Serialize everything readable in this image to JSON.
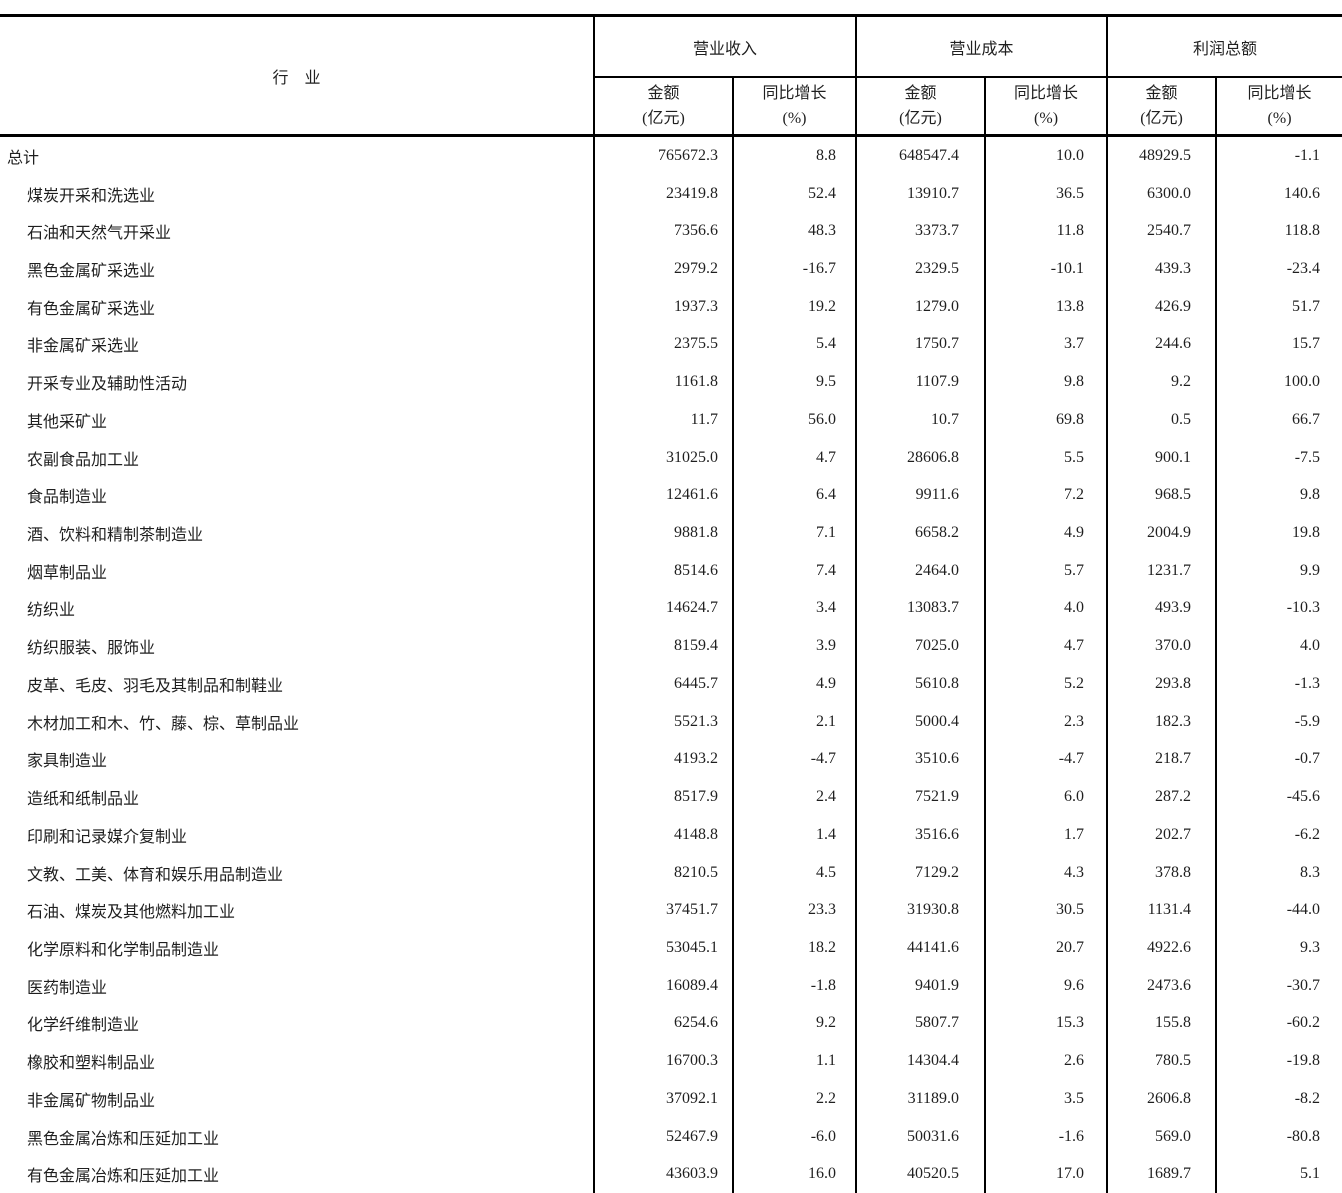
{
  "table": {
    "industry_header": "行　业",
    "groups": [
      {
        "label": "营业收入"
      },
      {
        "label": "营业成本"
      },
      {
        "label": "利润总额"
      }
    ],
    "sub_headers": {
      "amount_line1": "金额",
      "amount_line2": "(亿元)",
      "growth_line1": "同比增长",
      "growth_line2": "(%)"
    },
    "rows": [
      {
        "industry": "总计",
        "indent": false,
        "values": [
          "765672.3",
          "8.8",
          "648547.4",
          "10.0",
          "48929.5",
          "-1.1"
        ]
      },
      {
        "industry": "煤炭开采和洗选业",
        "indent": true,
        "values": [
          "23419.8",
          "52.4",
          "13910.7",
          "36.5",
          "6300.0",
          "140.6"
        ]
      },
      {
        "industry": "石油和天然气开采业",
        "indent": true,
        "values": [
          "7356.6",
          "48.3",
          "3373.7",
          "11.8",
          "2540.7",
          "118.8"
        ]
      },
      {
        "industry": "黑色金属矿采选业",
        "indent": true,
        "values": [
          "2979.2",
          "-16.7",
          "2329.5",
          "-10.1",
          "439.3",
          "-23.4"
        ]
      },
      {
        "industry": "有色金属矿采选业",
        "indent": true,
        "values": [
          "1937.3",
          "19.2",
          "1279.0",
          "13.8",
          "426.9",
          "51.7"
        ]
      },
      {
        "industry": "非金属矿采选业",
        "indent": true,
        "values": [
          "2375.5",
          "5.4",
          "1750.7",
          "3.7",
          "244.6",
          "15.7"
        ]
      },
      {
        "industry": "开采专业及辅助性活动",
        "indent": true,
        "values": [
          "1161.8",
          "9.5",
          "1107.9",
          "9.8",
          "9.2",
          "100.0"
        ]
      },
      {
        "industry": "其他采矿业",
        "indent": true,
        "values": [
          "11.7",
          "56.0",
          "10.7",
          "69.8",
          "0.5",
          "66.7"
        ]
      },
      {
        "industry": "农副食品加工业",
        "indent": true,
        "values": [
          "31025.0",
          "4.7",
          "28606.8",
          "5.5",
          "900.1",
          "-7.5"
        ]
      },
      {
        "industry": "食品制造业",
        "indent": true,
        "values": [
          "12461.6",
          "6.4",
          "9911.6",
          "7.2",
          "968.5",
          "9.8"
        ]
      },
      {
        "industry": "酒、饮料和精制茶制造业",
        "indent": true,
        "values": [
          "9881.8",
          "7.1",
          "6658.2",
          "4.9",
          "2004.9",
          "19.8"
        ]
      },
      {
        "industry": "烟草制品业",
        "indent": true,
        "values": [
          "8514.6",
          "7.4",
          "2464.0",
          "5.7",
          "1231.7",
          "9.9"
        ]
      },
      {
        "industry": "纺织业",
        "indent": true,
        "values": [
          "14624.7",
          "3.4",
          "13083.7",
          "4.0",
          "493.9",
          "-10.3"
        ]
      },
      {
        "industry": "纺织服装、服饰业",
        "indent": true,
        "values": [
          "8159.4",
          "3.9",
          "7025.0",
          "4.7",
          "370.0",
          "4.0"
        ]
      },
      {
        "industry": "皮革、毛皮、羽毛及其制品和制鞋业",
        "indent": true,
        "values": [
          "6445.7",
          "4.9",
          "5610.8",
          "5.2",
          "293.8",
          "-1.3"
        ]
      },
      {
        "industry": "木材加工和木、竹、藤、棕、草制品业",
        "indent": true,
        "values": [
          "5521.3",
          "2.1",
          "5000.4",
          "2.3",
          "182.3",
          "-5.9"
        ]
      },
      {
        "industry": "家具制造业",
        "indent": true,
        "values": [
          "4193.2",
          "-4.7",
          "3510.6",
          "-4.7",
          "218.7",
          "-0.7"
        ]
      },
      {
        "industry": "造纸和纸制品业",
        "indent": true,
        "values": [
          "8517.9",
          "2.4",
          "7521.9",
          "6.0",
          "287.2",
          "-45.6"
        ]
      },
      {
        "industry": "印刷和记录媒介复制业",
        "indent": true,
        "values": [
          "4148.8",
          "1.4",
          "3516.6",
          "1.7",
          "202.7",
          "-6.2"
        ]
      },
      {
        "industry": "文教、工美、体育和娱乐用品制造业",
        "indent": true,
        "values": [
          "8210.5",
          "4.5",
          "7129.2",
          "4.3",
          "378.8",
          "8.3"
        ]
      },
      {
        "industry": "石油、煤炭及其他燃料加工业",
        "indent": true,
        "values": [
          "37451.7",
          "23.3",
          "31930.8",
          "30.5",
          "1131.4",
          "-44.0"
        ]
      },
      {
        "industry": "化学原料和化学制品制造业",
        "indent": true,
        "values": [
          "53045.1",
          "18.2",
          "44141.6",
          "20.7",
          "4922.6",
          "9.3"
        ]
      },
      {
        "industry": "医药制造业",
        "indent": true,
        "values": [
          "16089.4",
          "-1.8",
          "9401.9",
          "9.6",
          "2473.6",
          "-30.7"
        ]
      },
      {
        "industry": "化学纤维制造业",
        "indent": true,
        "values": [
          "6254.6",
          "9.2",
          "5807.7",
          "15.3",
          "155.8",
          "-60.2"
        ]
      },
      {
        "industry": "橡胶和塑料制品业",
        "indent": true,
        "values": [
          "16700.3",
          "1.1",
          "14304.4",
          "2.6",
          "780.5",
          "-19.8"
        ]
      },
      {
        "industry": "非金属矿物制品业",
        "indent": true,
        "values": [
          "37092.1",
          "2.2",
          "31189.0",
          "3.5",
          "2606.8",
          "-8.2"
        ]
      },
      {
        "industry": "黑色金属冶炼和压延加工业",
        "indent": true,
        "values": [
          "52467.9",
          "-6.0",
          "50031.6",
          "-1.6",
          "569.0",
          "-80.8"
        ]
      },
      {
        "industry": "有色金属冶炼和压延加工业",
        "indent": true,
        "values": [
          "43603.9",
          "16.0",
          "40520.5",
          "17.0",
          "1689.7",
          "5.1"
        ]
      }
    ]
  }
}
